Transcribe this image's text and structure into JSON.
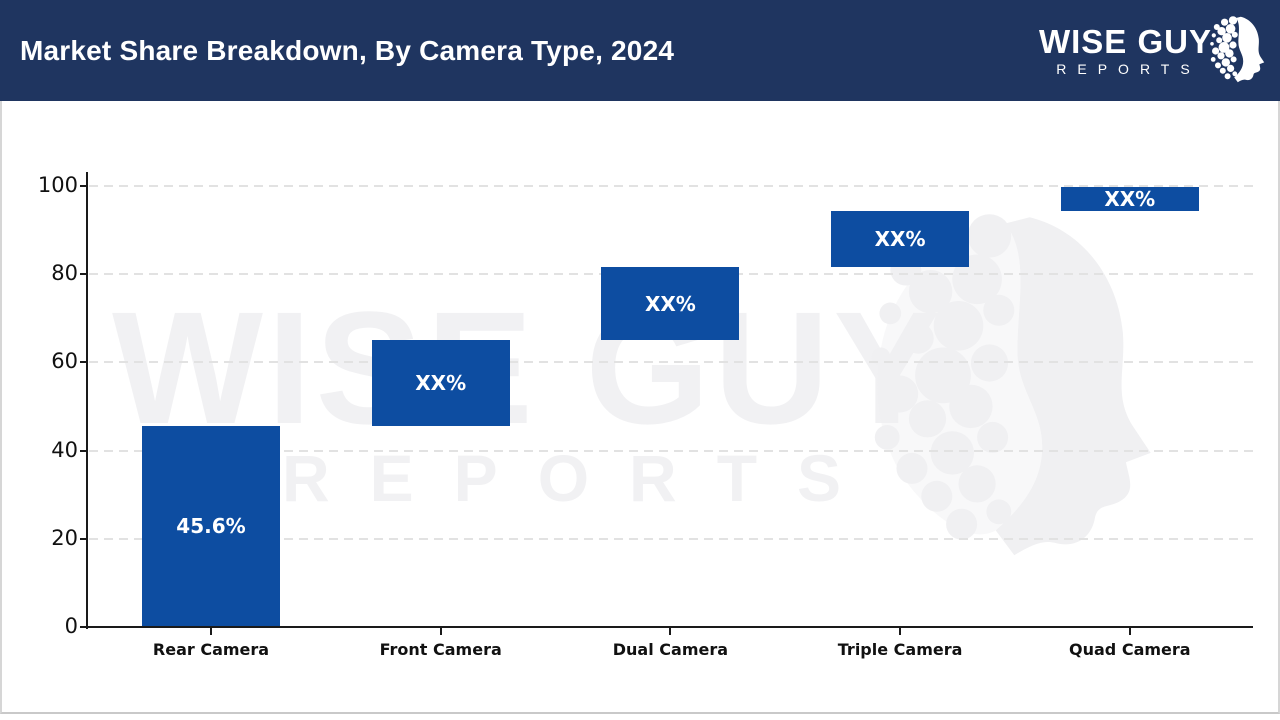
{
  "header": {
    "title": "Market Share Breakdown, By Camera Type, 2024",
    "logo": {
      "line1": "WISE GUY",
      "line2": "REPORTS"
    }
  },
  "watermark": {
    "line1": "WISE GUY",
    "line2": "REPORTS"
  },
  "colors": {
    "header_bg": "#1f3560",
    "bar_blue": "#0d4da1",
    "grid_gray": "#e2e2e2",
    "axis_black": "#1a1a1a",
    "bar_label_white": "#ffffff",
    "watermark_gray": "#f1f1f3"
  },
  "chart_data": {
    "type": "bar",
    "subtype": "waterfall",
    "title": "Market Share Breakdown, By Camera Type, 2024",
    "categories": [
      "Rear Camera",
      "Front Camera",
      "Dual Camera",
      "Triple Camera",
      "Quad Camera"
    ],
    "segments": [
      {
        "category": "Rear Camera",
        "start": 0,
        "end": 45.6,
        "label": "45.6%"
      },
      {
        "category": "Front Camera",
        "start": 45.6,
        "end": 65.1,
        "label": "XX%"
      },
      {
        "category": "Dual Camera",
        "start": 65.1,
        "end": 81.6,
        "label": "XX%"
      },
      {
        "category": "Triple Camera",
        "start": 81.6,
        "end": 94.3,
        "label": "XX%"
      },
      {
        "category": "Quad Camera",
        "start": 94.3,
        "end": 99.8,
        "label": "XX%"
      }
    ],
    "yticks": [
      0,
      20,
      40,
      60,
      80,
      100
    ],
    "ylim": [
      0,
      100
    ],
    "xlabel": "",
    "ylabel": "",
    "grid": "horizontal-dashed",
    "legend": "none"
  }
}
